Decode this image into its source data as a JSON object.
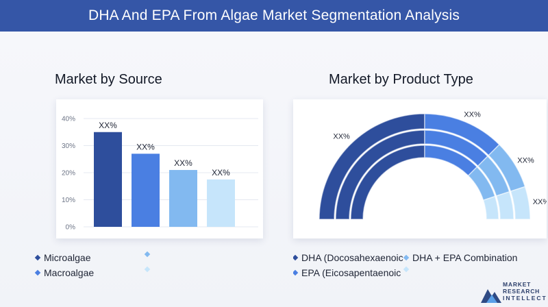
{
  "header": {
    "title": "DHA And EPA From Algae Market Segmentation Analysis"
  },
  "colors": {
    "header_bg": "#3556a7",
    "dark_blue": "#2e4e9c",
    "mid_blue": "#4a7fe2",
    "light_blue": "#82b9f0",
    "pale_blue": "#c6e5fb"
  },
  "left": {
    "title": "Market by Source",
    "legend": [
      {
        "label": "Microalgae",
        "color": "#2e4e9c"
      },
      {
        "label": "",
        "color": "#82b9f0"
      },
      {
        "label": "Macroalgae",
        "color": "#4a7fe2"
      },
      {
        "label": "",
        "color": "#c6e5fb"
      }
    ]
  },
  "right": {
    "title": "Market by Product Type",
    "legend": [
      {
        "label": "DHA (Docosahexaenoic",
        "color": "#2e4e9c"
      },
      {
        "label": "DHA + EPA Combination",
        "color": "#82b9f0"
      },
      {
        "label": "EPA (Eicosapentaenoic",
        "color": "#4a7fe2"
      },
      {
        "label": "",
        "color": "#c6e5fb"
      }
    ]
  },
  "chart_data": [
    {
      "type": "bar",
      "categories": [
        "",
        "",
        "",
        ""
      ],
      "values": [
        35,
        27,
        21,
        17.5
      ],
      "data_labels": [
        "XX%",
        "XX%",
        "XX%",
        "XX%"
      ],
      "colors": [
        "#2e4e9c",
        "#4a7fe2",
        "#82b9f0",
        "#c6e5fb"
      ],
      "yticks": [
        "0%",
        "10%",
        "20%",
        "30%",
        "40%"
      ],
      "ylim": [
        0,
        40
      ],
      "grid": true,
      "title": "",
      "xlabel": "",
      "ylabel": ""
    },
    {
      "type": "pie",
      "variant": "half-donut",
      "values": [
        50,
        25,
        15,
        10
      ],
      "data_labels": [
        "XX%",
        "XX%",
        "XX%",
        "XX%"
      ],
      "colors": [
        "#2e4e9c",
        "#4a7fe2",
        "#82b9f0",
        "#c6e5fb"
      ],
      "title": ""
    }
  ],
  "logo": {
    "line1": "MARKET",
    "line2": "RESEARCH",
    "line3": "INTELLECT"
  }
}
